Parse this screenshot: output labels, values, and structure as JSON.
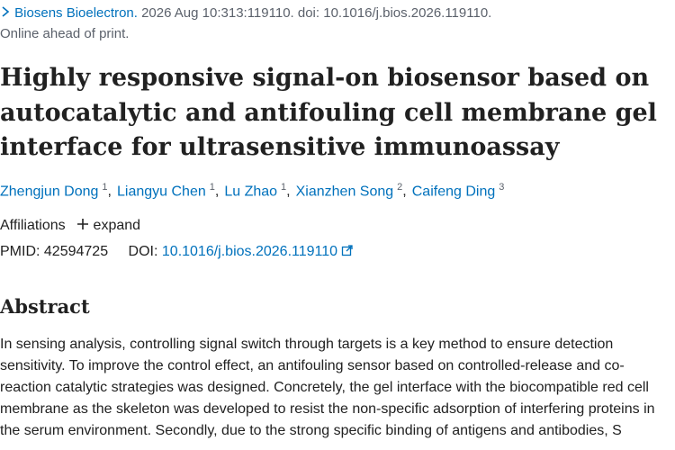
{
  "citation": {
    "journal": "Biosens Bioelectron.",
    "details": "2026 Aug 10:313:119110. doi: 10.1016/j.bios.2026.119110.",
    "status": "Online ahead of print."
  },
  "title": "Highly responsive signal-on biosensor based on autocatalytic and antifouling cell membrane gel interface for ultrasensitive immunoassay",
  "authors": [
    {
      "name": "Zhengjun Dong",
      "affiliation": "1",
      "separator": ","
    },
    {
      "name": "Liangyu Chen",
      "affiliation": "1",
      "separator": ","
    },
    {
      "name": "Lu Zhao",
      "affiliation": "1",
      "separator": ","
    },
    {
      "name": "Xianzhen Song",
      "affiliation": "2",
      "separator": ","
    },
    {
      "name": "Caifeng Ding",
      "affiliation": "3"
    }
  ],
  "affiliations": {
    "label": "Affiliations",
    "toggle": "expand"
  },
  "identifiers": {
    "pmid_label": "PMID:",
    "pmid": "42594725",
    "doi_label": "DOI:",
    "doi": "10.1016/j.bios.2026.119110"
  },
  "abstract": {
    "heading": "Abstract",
    "text": "In sensing analysis, controlling signal switch through targets is a key method to ensure detection sensitivity. To improve the control effect, an antifouling sensor based on controlled-release and co-reaction catalytic strategies was designed. Concretely, the gel interface with the biocompatible red cell membrane as the skeleton was developed to resist the non-specific adsorption of interfering proteins in the serum environment. Secondly, due to the strong specific binding of antigens and antibodies, S"
  }
}
